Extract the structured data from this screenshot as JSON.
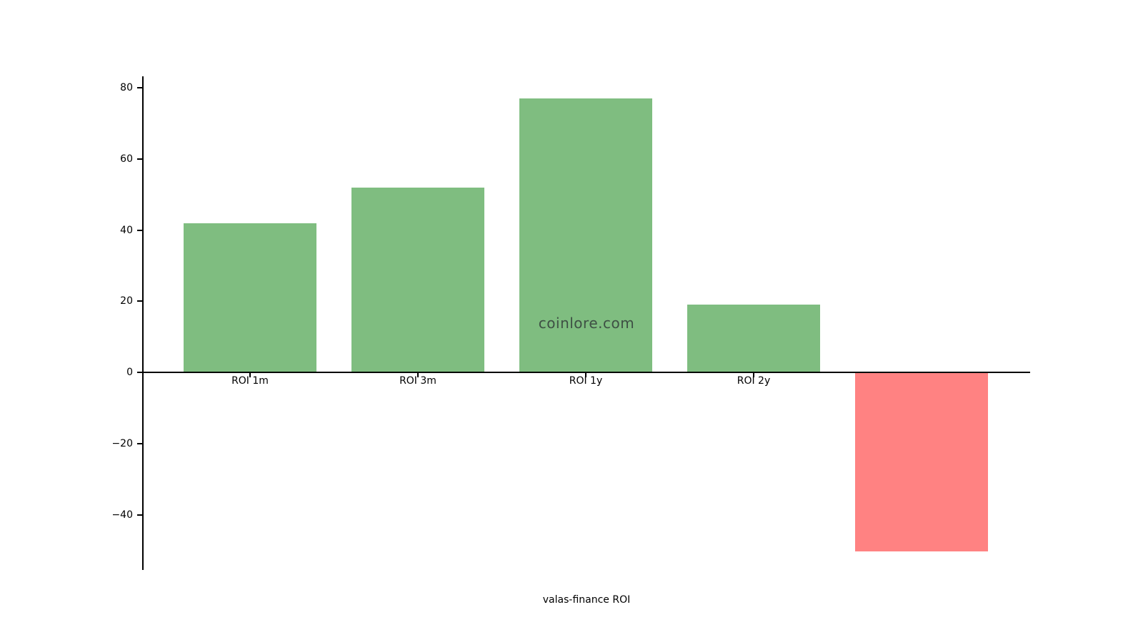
{
  "chart_data": {
    "type": "bar",
    "title": "valas-finance ROI",
    "xlabel": "valas-finance ROI",
    "ylabel": "",
    "watermark": "coinlore.com",
    "categories": [
      "ROI 1m",
      "ROI 3m",
      "ROI 1y",
      "ROI 2y",
      ""
    ],
    "values": [
      42,
      52,
      77,
      19,
      -50
    ],
    "positive_color": "#7fbd80",
    "negative_color": "#ff8282",
    "bar_colors": [
      "#7fbd80",
      "#7fbd80",
      "#7fbd80",
      "#7fbd80",
      "#ff8282"
    ],
    "yticks": [
      80,
      60,
      40,
      20,
      0,
      -20,
      -40
    ],
    "ytick_labels": [
      "80",
      "60",
      "40",
      "20",
      "0",
      "−20",
      "−40"
    ],
    "ylim": [
      -55.5,
      83.2
    ],
    "grid": false,
    "legend": null,
    "axis_color": "#000000",
    "text_color": "#000000",
    "watermark_color": "#3e5044",
    "background_color": "#ffffff"
  }
}
